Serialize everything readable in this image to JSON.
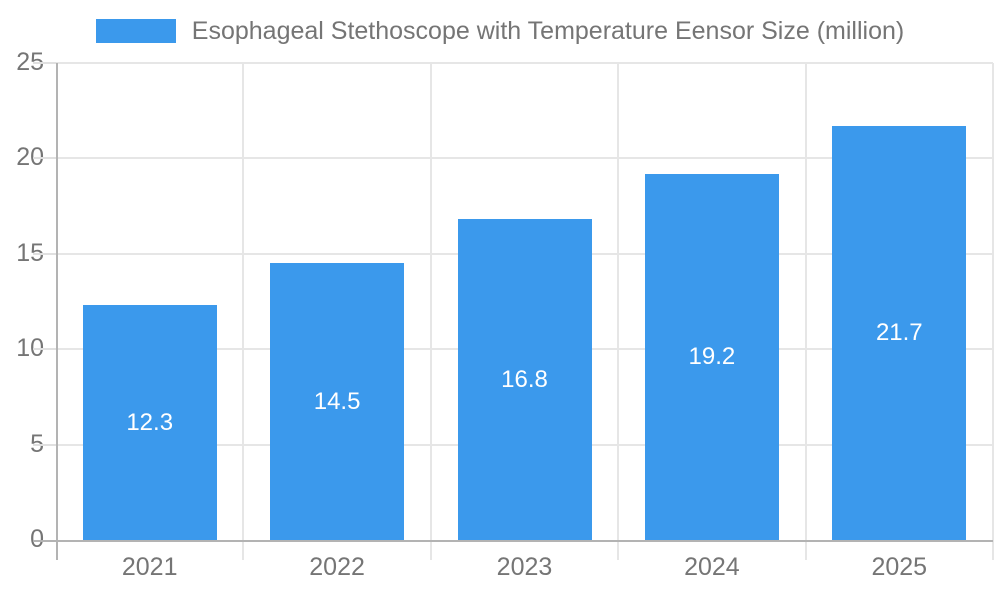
{
  "legend": {
    "label": "Esophageal Stethoscope with Temperature Eensor Size (million)",
    "swatch_color": "#3b99ec"
  },
  "chart_data": {
    "type": "bar",
    "categories": [
      "2021",
      "2022",
      "2023",
      "2024",
      "2025"
    ],
    "values": [
      12.3,
      14.5,
      16.8,
      19.2,
      21.7
    ],
    "title": "Esophageal Stethoscope with Temperature Eensor Size (million)",
    "xlabel": "",
    "ylabel": "",
    "ylim": [
      0,
      25
    ],
    "yticks": [
      0,
      5,
      10,
      15,
      20,
      25
    ],
    "grid": true,
    "legend_position": "top-center",
    "value_labels_inside_bars": true,
    "colors": {
      "bar": "#3b99ec",
      "value_label": "#ffffff",
      "axis": "#b3b3b3",
      "gridline": "#e6e6e6",
      "tick_text": "#757575"
    }
  }
}
